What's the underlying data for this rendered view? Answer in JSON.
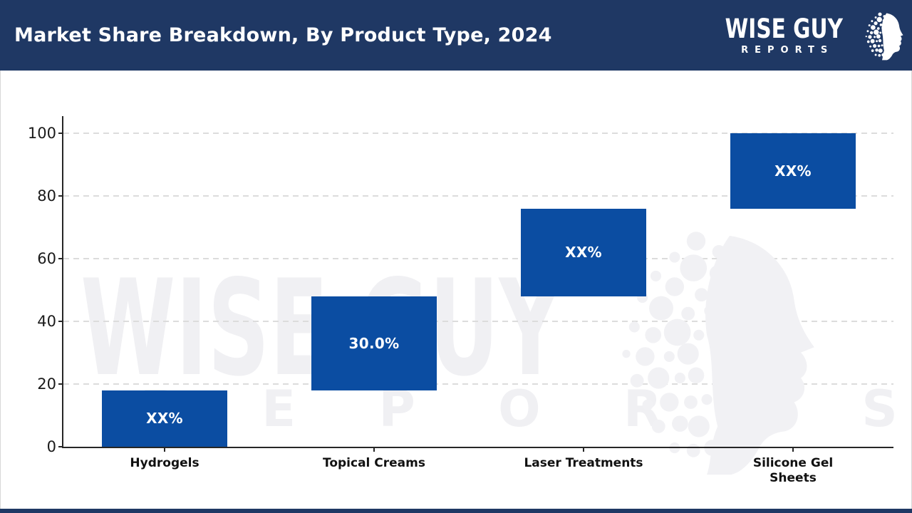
{
  "header": {
    "title": "Market Share Breakdown, By Product Type, 2024",
    "bg_color": "#1f3864",
    "logo": {
      "primary": "WISE GUY",
      "secondary": "REPORTS"
    }
  },
  "watermark": {
    "primary": "WISE GUY",
    "secondary": "R E P O R T S"
  },
  "chart_data": {
    "type": "bar",
    "subtype": "floating-waterfall",
    "title": "Market Share Breakdown, By Product Type, 2024",
    "categories": [
      "Hydrogels",
      "Topical Creams",
      "Laser Treatments",
      "Silicone Gel\nSheets"
    ],
    "segments": [
      {
        "category": "Hydrogels",
        "start": 0,
        "end": 18,
        "label": "XX%"
      },
      {
        "category": "Topical Creams",
        "start": 18,
        "end": 48,
        "label": "30.0%"
      },
      {
        "category": "Laser Treatments",
        "start": 48,
        "end": 76,
        "label": "XX%"
      },
      {
        "category": "Silicone Gel Sheets",
        "start": 76,
        "end": 100,
        "label": "XX%"
      }
    ],
    "xlabel": "",
    "ylabel": "",
    "ylim": [
      0,
      100
    ],
    "yticks": [
      0,
      20,
      40,
      60,
      80,
      100
    ],
    "grid": {
      "axis": "y",
      "style": "dashed",
      "color": "#dcdcdc"
    },
    "legend": "none",
    "bar_color": "#0b4da2",
    "bar_label_color": "#ffffff",
    "axis_color": "#262626",
    "tick_label_color": "#1a1a1a"
  }
}
